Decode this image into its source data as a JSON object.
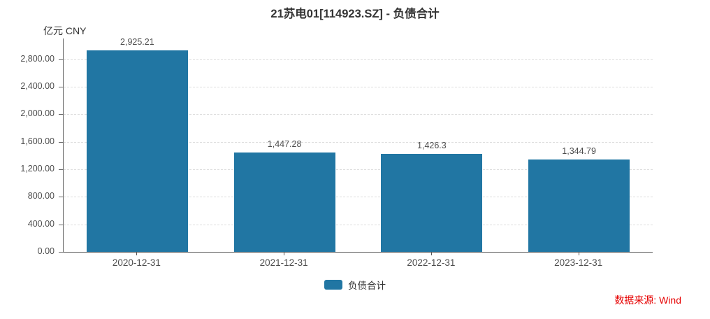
{
  "header": {
    "title": "21苏电01[114923.SZ] - 负债合计"
  },
  "axis": {
    "unit_label": "亿元 CNY"
  },
  "legend": {
    "label": "负债合计"
  },
  "source": {
    "text": "数据来源: Wind"
  },
  "colors": {
    "bar": "#2176a3",
    "title_text": "#333333",
    "tick_text": "#4d4d4d",
    "axis_line": "#666666",
    "gridline": "#dddddd",
    "source_text": "#e60000"
  },
  "chart_data": {
    "type": "bar",
    "title": "21苏电01[114923.SZ] - 负债合计",
    "xlabel": "",
    "ylabel": "亿元 CNY",
    "categories": [
      "2020-12-31",
      "2021-12-31",
      "2022-12-31",
      "2023-12-31"
    ],
    "series": [
      {
        "name": "负债合计",
        "values": [
          2925.21,
          1447.28,
          1426.3,
          1344.79
        ],
        "value_labels": [
          "2,925.21",
          "1,447.28",
          "1,426.3",
          "1,344.79"
        ]
      }
    ],
    "ylim": [
      0,
      3100
    ],
    "yticks": [
      0,
      400,
      800,
      1200,
      1600,
      2000,
      2400,
      2800
    ],
    "ytick_labels": [
      "0.00",
      "400.00",
      "800.00",
      "1,200.00",
      "1,600.00",
      "2,000.00",
      "2,400.00",
      "2,800.00"
    ],
    "grid": "horizontal-dashed",
    "legend_position": "bottom",
    "data_source": "Wind"
  }
}
